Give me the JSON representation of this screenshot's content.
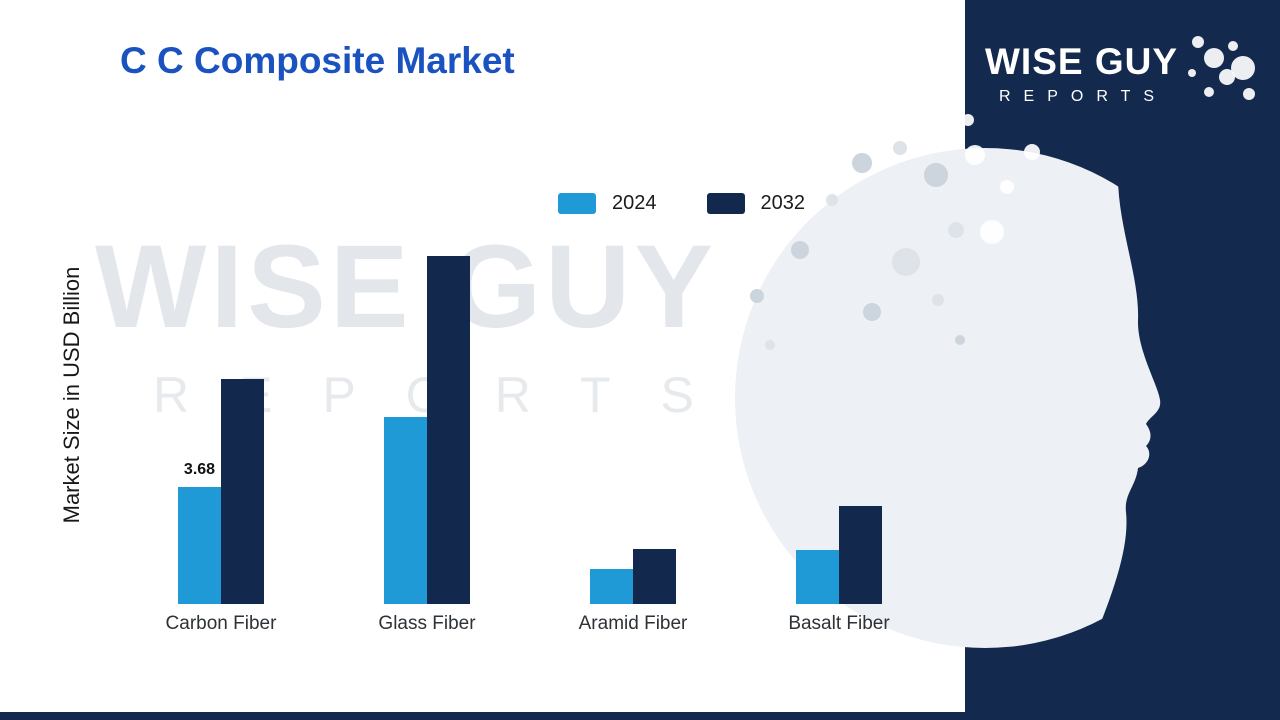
{
  "page": {
    "title": "C C Composite Market"
  },
  "ylabel": "Market Size in USD Billion",
  "legend": [
    {
      "label": "2024",
      "color": "#1f9ad6"
    },
    {
      "label": "2032",
      "color": "#12294d"
    }
  ],
  "watermark": {
    "line1": "WISE GUY",
    "line2": "REPORTS"
  },
  "logo": {
    "line1": "WISE GUY",
    "line2": "REPORTS"
  },
  "colors": {
    "title_blue": "#1a53c0",
    "series_2024": "#1f9ad6",
    "series_2032": "#12294d",
    "panel_navy": "#14294e",
    "watermark_gray": "#e3e6ea"
  },
  "chart_data": {
    "type": "bar",
    "title": "C C Composite Market",
    "ylabel": "Market Size in USD Billion",
    "categories": [
      "Carbon Fiber",
      "Glass Fiber",
      "Aramid Fiber",
      "Basalt Fiber"
    ],
    "series": [
      {
        "name": "2024",
        "color": "#1f9ad6",
        "values": [
          3.68,
          5.9,
          1.1,
          1.7
        ]
      },
      {
        "name": "2032",
        "color": "#12294d",
        "values": [
          7.1,
          11.0,
          1.75,
          3.1
        ]
      }
    ],
    "value_labels": [
      {
        "series": "2024",
        "category_index": 0,
        "text": "3.68"
      }
    ],
    "ylim": [
      0,
      12
    ],
    "grid": false,
    "legend_position": "top"
  }
}
